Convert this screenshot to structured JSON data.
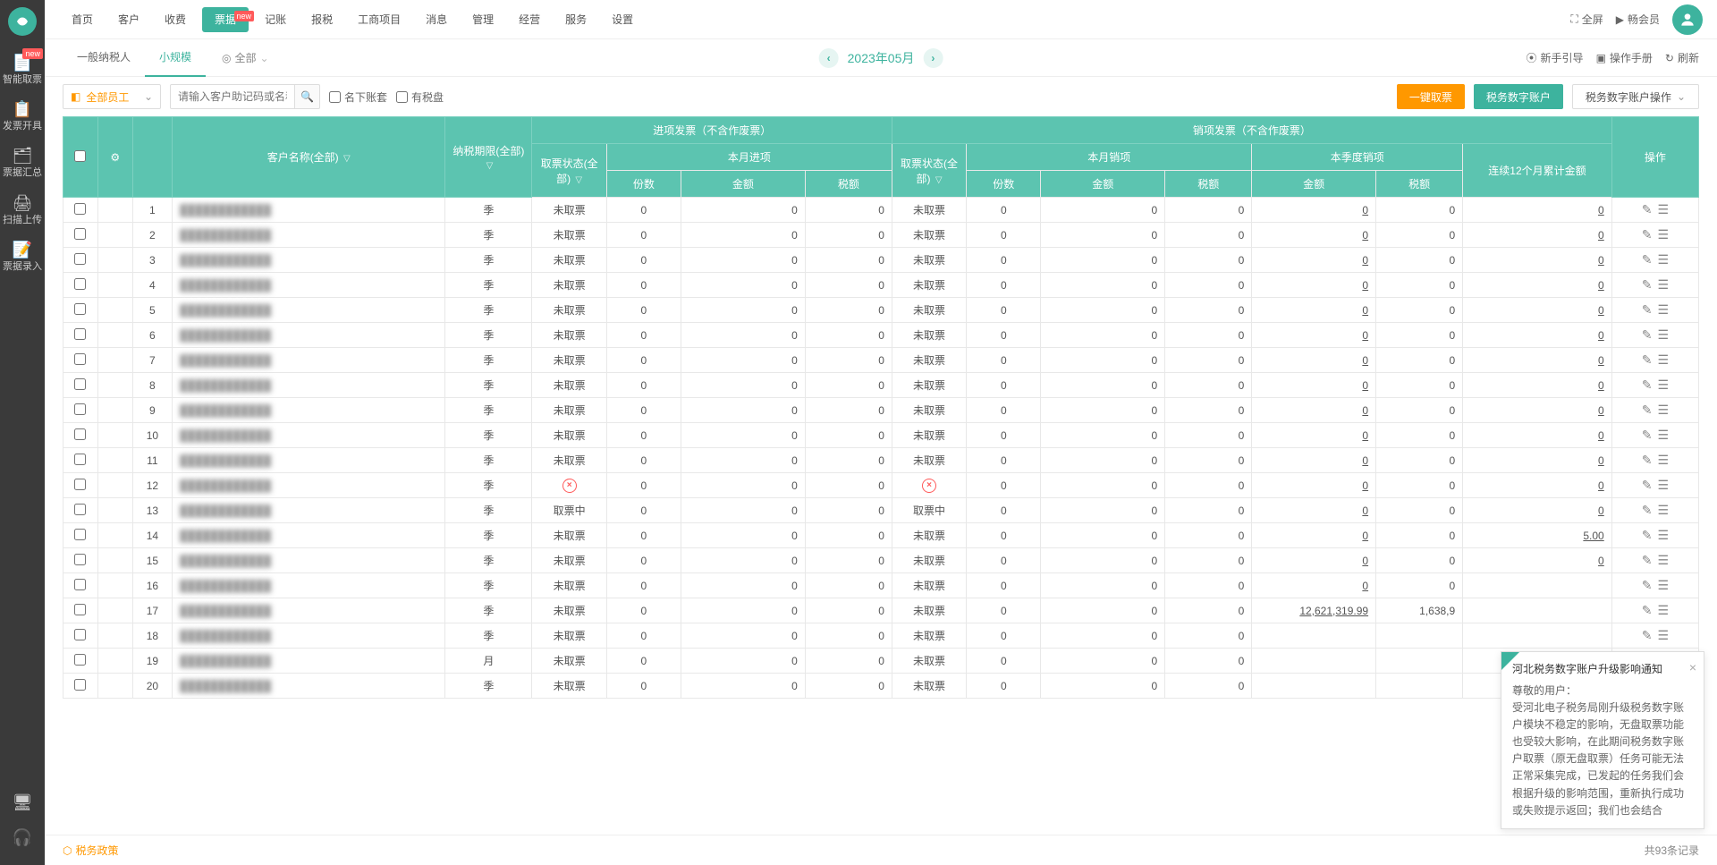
{
  "sidebar": {
    "items": [
      {
        "label": "智能取票",
        "icon": "📄",
        "badge": "new"
      },
      {
        "label": "发票开具",
        "icon": "📋"
      },
      {
        "label": "票据汇总",
        "icon": "🗂"
      },
      {
        "label": "扫描上传",
        "icon": "🖨"
      },
      {
        "label": "票据录入",
        "icon": "📝"
      }
    ],
    "bottom": [
      {
        "icon": "🖥"
      },
      {
        "icon": "🎧"
      }
    ]
  },
  "topnav": {
    "items": [
      "首页",
      "客户",
      "收费",
      "票据",
      "记账",
      "报税",
      "工商项目",
      "消息",
      "管理",
      "经营",
      "服务",
      "设置"
    ],
    "active_index": 3,
    "badge_new_index": 3,
    "right": {
      "fullscreen": "全屏",
      "member": "畅会员"
    }
  },
  "tabs": {
    "items": [
      "一般纳税人",
      "小规模"
    ],
    "active_index": 1,
    "extra": "全部",
    "period": "2023年05月",
    "right": [
      "新手引导",
      "操作手册",
      "刷新"
    ]
  },
  "toolbar": {
    "emp_select": "全部员工",
    "search_placeholder": "请输入客户助记码或名称",
    "chk1": "名下账套",
    "chk2": "有税盘",
    "btn_fetch": "一键取票",
    "btn_digital": "税务数字账户",
    "btn_ops": "税务数字账户操作"
  },
  "table": {
    "head": {
      "name": "客户名称(全部)",
      "tax_period": "纳税期限(全部)",
      "group_in": "进项发票（不含作废票）",
      "group_out": "销项发票（不含作废票）",
      "status": "取票状态(全部)",
      "month_in": "本月进项",
      "month_out": "本月销项",
      "quarter_out": "本季度销项",
      "year12": "连续12个月累计金额",
      "ops": "操作",
      "count": "份数",
      "amount": "金额",
      "tax": "税额"
    },
    "rows": [
      {
        "i": 1,
        "p": "季",
        "s": "未取票",
        "c": 0,
        "a": 0,
        "t": 0,
        "s2": "未取票",
        "c2": 0,
        "a2": 0,
        "t2": 0,
        "qa": "0",
        "qt": 0,
        "y": "0"
      },
      {
        "i": 2,
        "p": "季",
        "s": "未取票",
        "c": 0,
        "a": 0,
        "t": 0,
        "s2": "未取票",
        "c2": 0,
        "a2": 0,
        "t2": 0,
        "qa": "0",
        "qt": 0,
        "y": "0"
      },
      {
        "i": 3,
        "p": "季",
        "s": "未取票",
        "c": 0,
        "a": 0,
        "t": 0,
        "s2": "未取票",
        "c2": 0,
        "a2": 0,
        "t2": 0,
        "qa": "0",
        "qt": 0,
        "y": "0"
      },
      {
        "i": 4,
        "p": "季",
        "s": "未取票",
        "c": 0,
        "a": 0,
        "t": 0,
        "s2": "未取票",
        "c2": 0,
        "a2": 0,
        "t2": 0,
        "qa": "0",
        "qt": 0,
        "y": "0"
      },
      {
        "i": 5,
        "p": "季",
        "s": "未取票",
        "c": 0,
        "a": 0,
        "t": 0,
        "s2": "未取票",
        "c2": 0,
        "a2": 0,
        "t2": 0,
        "qa": "0",
        "qt": 0,
        "y": "0"
      },
      {
        "i": 6,
        "p": "季",
        "s": "未取票",
        "c": 0,
        "a": 0,
        "t": 0,
        "s2": "未取票",
        "c2": 0,
        "a2": 0,
        "t2": 0,
        "qa": "0",
        "qt": 0,
        "y": "0"
      },
      {
        "i": 7,
        "p": "季",
        "s": "未取票",
        "c": 0,
        "a": 0,
        "t": 0,
        "s2": "未取票",
        "c2": 0,
        "a2": 0,
        "t2": 0,
        "qa": "0",
        "qt": 0,
        "y": "0"
      },
      {
        "i": 8,
        "p": "季",
        "s": "未取票",
        "c": 0,
        "a": 0,
        "t": 0,
        "s2": "未取票",
        "c2": 0,
        "a2": 0,
        "t2": 0,
        "qa": "0",
        "qt": 0,
        "y": "0"
      },
      {
        "i": 9,
        "p": "季",
        "s": "未取票",
        "c": 0,
        "a": 0,
        "t": 0,
        "s2": "未取票",
        "c2": 0,
        "a2": 0,
        "t2": 0,
        "qa": "0",
        "qt": 0,
        "y": "0"
      },
      {
        "i": 10,
        "p": "季",
        "s": "未取票",
        "c": 0,
        "a": 0,
        "t": 0,
        "s2": "未取票",
        "c2": 0,
        "a2": 0,
        "t2": 0,
        "qa": "0",
        "qt": 0,
        "y": "0"
      },
      {
        "i": 11,
        "p": "季",
        "s": "未取票",
        "c": 0,
        "a": 0,
        "t": 0,
        "s2": "未取票",
        "c2": 0,
        "a2": 0,
        "t2": 0,
        "qa": "0",
        "qt": 0,
        "y": "0"
      },
      {
        "i": 12,
        "p": "季",
        "s": "ERR",
        "c": 0,
        "a": 0,
        "t": 0,
        "s2": "ERR",
        "c2": 0,
        "a2": 0,
        "t2": 0,
        "qa": "0",
        "qt": 0,
        "y": "0"
      },
      {
        "i": 13,
        "p": "季",
        "s": "取票中",
        "c": 0,
        "a": 0,
        "t": 0,
        "s2": "取票中",
        "c2": 0,
        "a2": 0,
        "t2": 0,
        "qa": "0",
        "qt": 0,
        "y": "0"
      },
      {
        "i": 14,
        "p": "季",
        "s": "未取票",
        "c": 0,
        "a": 0,
        "t": 0,
        "s2": "未取票",
        "c2": 0,
        "a2": 0,
        "t2": 0,
        "qa": "0",
        "qt": 0,
        "y": "5.00"
      },
      {
        "i": 15,
        "p": "季",
        "s": "未取票",
        "c": 0,
        "a": 0,
        "t": 0,
        "s2": "未取票",
        "c2": 0,
        "a2": 0,
        "t2": 0,
        "qa": "0",
        "qt": 0,
        "y": "0"
      },
      {
        "i": 16,
        "p": "季",
        "s": "未取票",
        "c": 0,
        "a": 0,
        "t": 0,
        "s2": "未取票",
        "c2": 0,
        "a2": 0,
        "t2": 0,
        "qa": "0",
        "qt": 0,
        "y": ""
      },
      {
        "i": 17,
        "p": "季",
        "s": "未取票",
        "c": 0,
        "a": 0,
        "t": 0,
        "s2": "未取票",
        "c2": 0,
        "a2": 0,
        "t2": 0,
        "qa": "12,621,319.99",
        "qt": "1,638,9",
        "y": ""
      },
      {
        "i": 18,
        "p": "季",
        "s": "未取票",
        "c": 0,
        "a": 0,
        "t": 0,
        "s2": "未取票",
        "c2": 0,
        "a2": 0,
        "t2": 0,
        "qa": "",
        "qt": "",
        "y": ""
      },
      {
        "i": 19,
        "p": "月",
        "s": "未取票",
        "c": 0,
        "a": 0,
        "t": 0,
        "s2": "未取票",
        "c2": 0,
        "a2": 0,
        "t2": 0,
        "qa": "",
        "qt": "",
        "y": ""
      },
      {
        "i": 20,
        "p": "季",
        "s": "未取票",
        "c": 0,
        "a": 0,
        "t": 0,
        "s2": "未取票",
        "c2": 0,
        "a2": 0,
        "t2": 0,
        "qa": "",
        "qt": "",
        "y": ""
      }
    ]
  },
  "footer": {
    "left": "税务政策",
    "right": "共93条记录"
  },
  "notif": {
    "title": "河北税务数字账户升级影响通知",
    "greet": "尊敬的用户：",
    "body": "受河北电子税务局刚升级税务数字账户模块不稳定的影响，无盘取票功能也受较大影响，在此期间税务数字账户取票（原无盘取票）任务可能无法正常采集完成，已发起的任务我们会根据升级的影响范围，重新执行成功或失败提示返回；我们也会结合"
  },
  "colors": {
    "teal": "#3db39e",
    "orange": "#ff9800",
    "header": "#5cc4b0"
  }
}
